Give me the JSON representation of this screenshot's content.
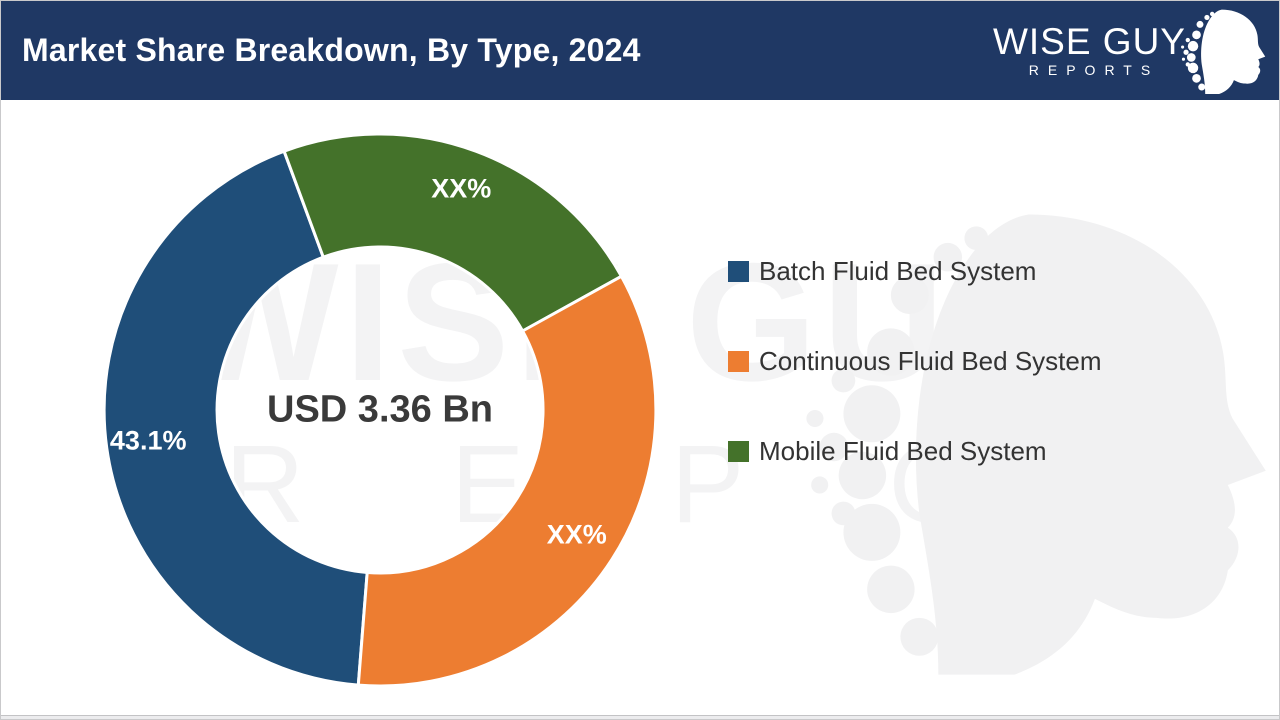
{
  "header": {
    "title": "Market Share Breakdown, By Type, 2024",
    "logo_line1": "WISE GUY",
    "logo_line2": "REPORTS"
  },
  "watermark": {
    "line1": "WISE GUY",
    "line2": "R E P O R T S"
  },
  "chart_data": {
    "type": "donut",
    "title": "Market Share Breakdown, By Type, 2024",
    "center_label": "USD 3.36 Bn",
    "slices": [
      {
        "name": "Batch Fluid Bed System",
        "display_label": "43.1%",
        "value_pct": 43.1,
        "color": "#1F4E79",
        "masked": false
      },
      {
        "name": "Continuous Fluid Bed System",
        "display_label": "XX%",
        "value_pct": 34.3,
        "color": "#ED7D31",
        "masked": true
      },
      {
        "name": "Mobile Fluid Bed System",
        "display_label": "XX%",
        "value_pct": 22.6,
        "color": "#44722A",
        "masked": true
      }
    ],
    "start_angle_deg": 184.5,
    "clockwise_order": [
      0,
      2,
      1
    ],
    "inner_radius_ratio": 0.59,
    "legend_position": "right",
    "grid": false
  },
  "colors": {
    "header_bg": "#1F3864",
    "center_text": "#3A3A3A",
    "legend_text": "#333333",
    "watermark": "#F3F3F4"
  }
}
